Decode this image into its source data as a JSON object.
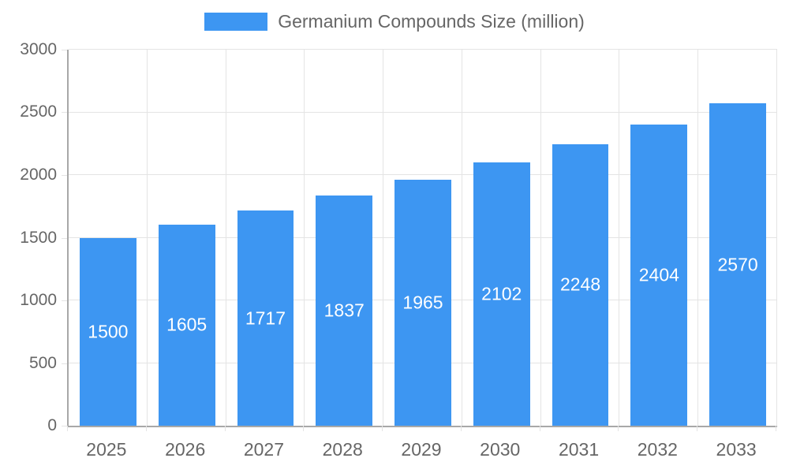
{
  "legend": {
    "label": "Germanium Compounds Size (million)"
  },
  "colors": {
    "bar": "#3D96F2",
    "grid": "#E4E4E4",
    "axis": "#A8A8A8",
    "text": "#666666",
    "value_label": "#FFFFFF",
    "background": "#FFFFFF"
  },
  "chart_data": {
    "type": "bar",
    "title": "Germanium Compounds Size (million)",
    "series_name": "Germanium Compounds Size (million)",
    "categories": [
      "2025",
      "2026",
      "2027",
      "2028",
      "2029",
      "2030",
      "2031",
      "2032",
      "2033"
    ],
    "values": [
      1500,
      1605,
      1717,
      1837,
      1965,
      2102,
      2248,
      2404,
      2570
    ],
    "xlabel": "",
    "ylabel": "",
    "ylim": [
      0,
      3000
    ],
    "yticks": [
      0,
      500,
      1000,
      1500,
      2000,
      2500,
      3000
    ],
    "grid": true,
    "legend_position": "top",
    "value_labels": "inside-center",
    "bar_width_fraction": 0.72
  }
}
